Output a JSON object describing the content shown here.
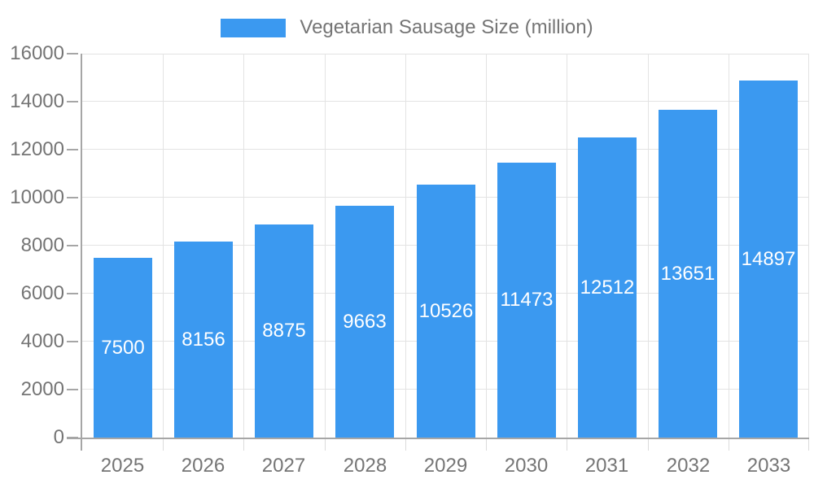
{
  "chart_data": {
    "type": "bar",
    "title": "Vegetarian Sausage Size (million)",
    "categories": [
      "2025",
      "2026",
      "2027",
      "2028",
      "2029",
      "2030",
      "2031",
      "2032",
      "2033"
    ],
    "values": [
      7500,
      8156,
      8875,
      9663,
      10526,
      11473,
      12512,
      13651,
      14897
    ],
    "xlabel": "",
    "ylabel": "",
    "ylim": [
      0,
      16000
    ],
    "ytick_step": 2000,
    "grid": true,
    "legend_position": "top",
    "value_labels": "inside-center",
    "colors": {
      "bar": "#3B99F0",
      "value_label": "#ffffff",
      "axis_text": "#757575",
      "grid_line": "#E3E3E3",
      "axis_line": "#A6A6A6",
      "x_tick": "#DBDBDB"
    }
  }
}
